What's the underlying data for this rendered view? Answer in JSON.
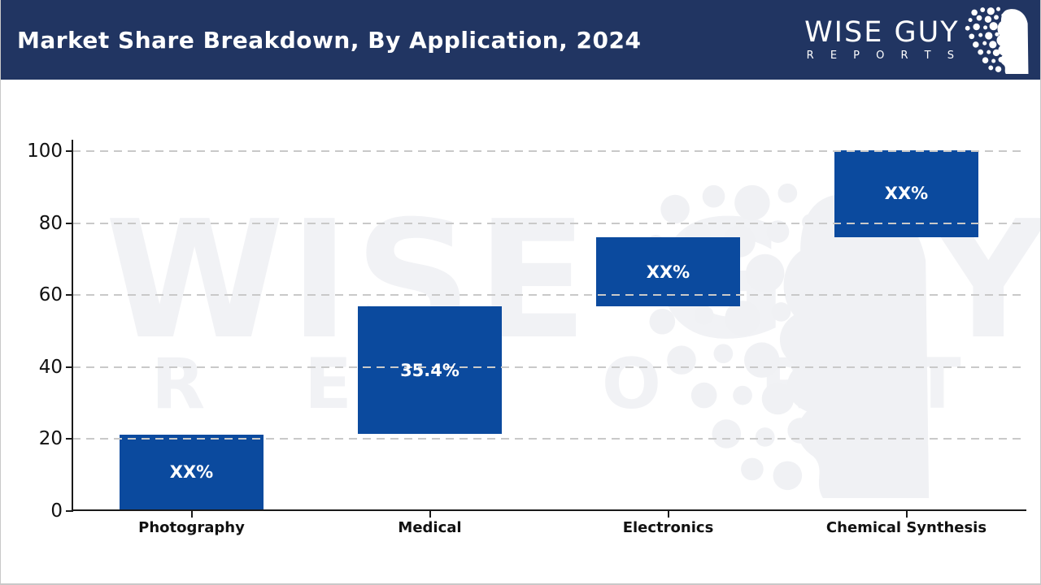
{
  "header": {
    "title": "Market Share Breakdown, By Application, 2024",
    "logo": {
      "line1": "WISE GUY",
      "line2": "R E P O R T S"
    }
  },
  "watermark": {
    "line1": "WISE GUY",
    "line2": "R E P O R T S"
  },
  "colors": {
    "header_bg": "#213562",
    "bar": "#0b4a9e",
    "grid": "#c9c9c9",
    "axis": "#1a1a1a",
    "bar_label": "#ffffff",
    "watermark": "#f1f2f5"
  },
  "chart_data": {
    "type": "bar",
    "subtype": "waterfall",
    "title": "Market Share Breakdown, By Application, 2024",
    "categories": [
      "Photography",
      "Medical",
      "Electronics",
      "Chemical Synthesis"
    ],
    "segments": [
      {
        "category": "Photography",
        "start": 0,
        "end": 21,
        "label": "XX%"
      },
      {
        "category": "Medical",
        "start": 21.2,
        "end": 56.6,
        "label": "35.4%"
      },
      {
        "category": "Electronics",
        "start": 56.6,
        "end": 75.9,
        "label": "XX%"
      },
      {
        "category": "Chemical Synthesis",
        "start": 75.9,
        "end": 100,
        "label": "XX%"
      }
    ],
    "xlabel": "",
    "ylabel": "",
    "ylim": [
      0,
      100
    ],
    "yticks": [
      0,
      20,
      40,
      60,
      80,
      100
    ],
    "grid": "horizontal-dashed",
    "legend": "none",
    "bar_value_labels_inside": true
  }
}
